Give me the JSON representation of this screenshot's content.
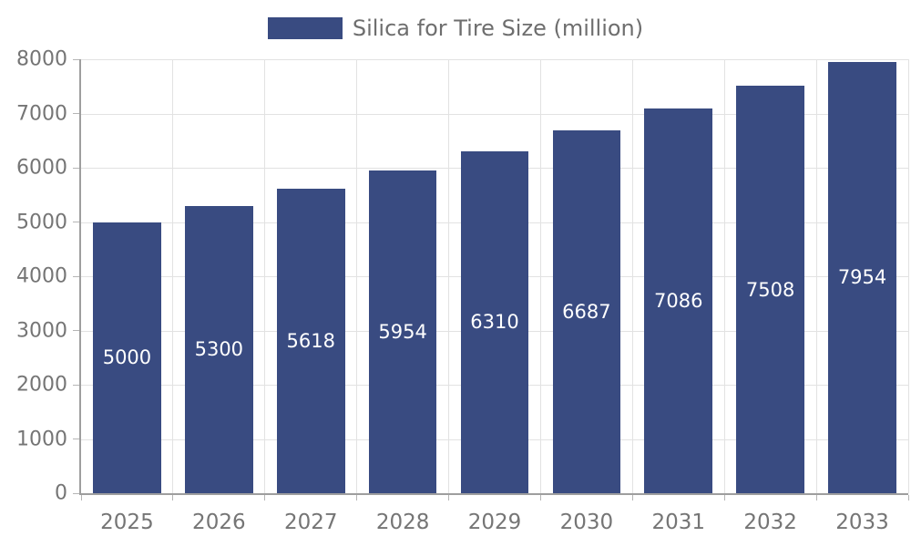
{
  "chart": {
    "background": "#FFFFFF",
    "legend": {
      "label": "Silica for Tire Size (million)",
      "swatch_color": "#394B81",
      "text_color": "#6E6E6E"
    }
  },
  "chart_data": {
    "type": "bar",
    "title": "Silica for Tire Size (million)",
    "series_name": "Silica for Tire Size (million)",
    "categories": [
      "2025",
      "2026",
      "2027",
      "2028",
      "2029",
      "2030",
      "2031",
      "2032",
      "2033"
    ],
    "values": [
      5000,
      5300,
      5618,
      5954,
      6310,
      6687,
      7086,
      7508,
      7954
    ],
    "bar_value_labels": [
      "5000",
      "5300",
      "5618",
      "5954",
      "6310",
      "6687",
      "7086",
      "7508",
      "7954"
    ],
    "xlabel": "",
    "ylabel": "",
    "ylim": [
      0,
      8000
    ],
    "ytick_step": 1000,
    "yticks": [
      0,
      1000,
      2000,
      3000,
      4000,
      5000,
      6000,
      7000,
      8000
    ],
    "grid": true,
    "legend_position": "top",
    "bar_color": "#394B81",
    "bar_label_color": "#FFFFFF",
    "axis_text_color": "#757575",
    "gridline_color": "#E2E2E2"
  }
}
